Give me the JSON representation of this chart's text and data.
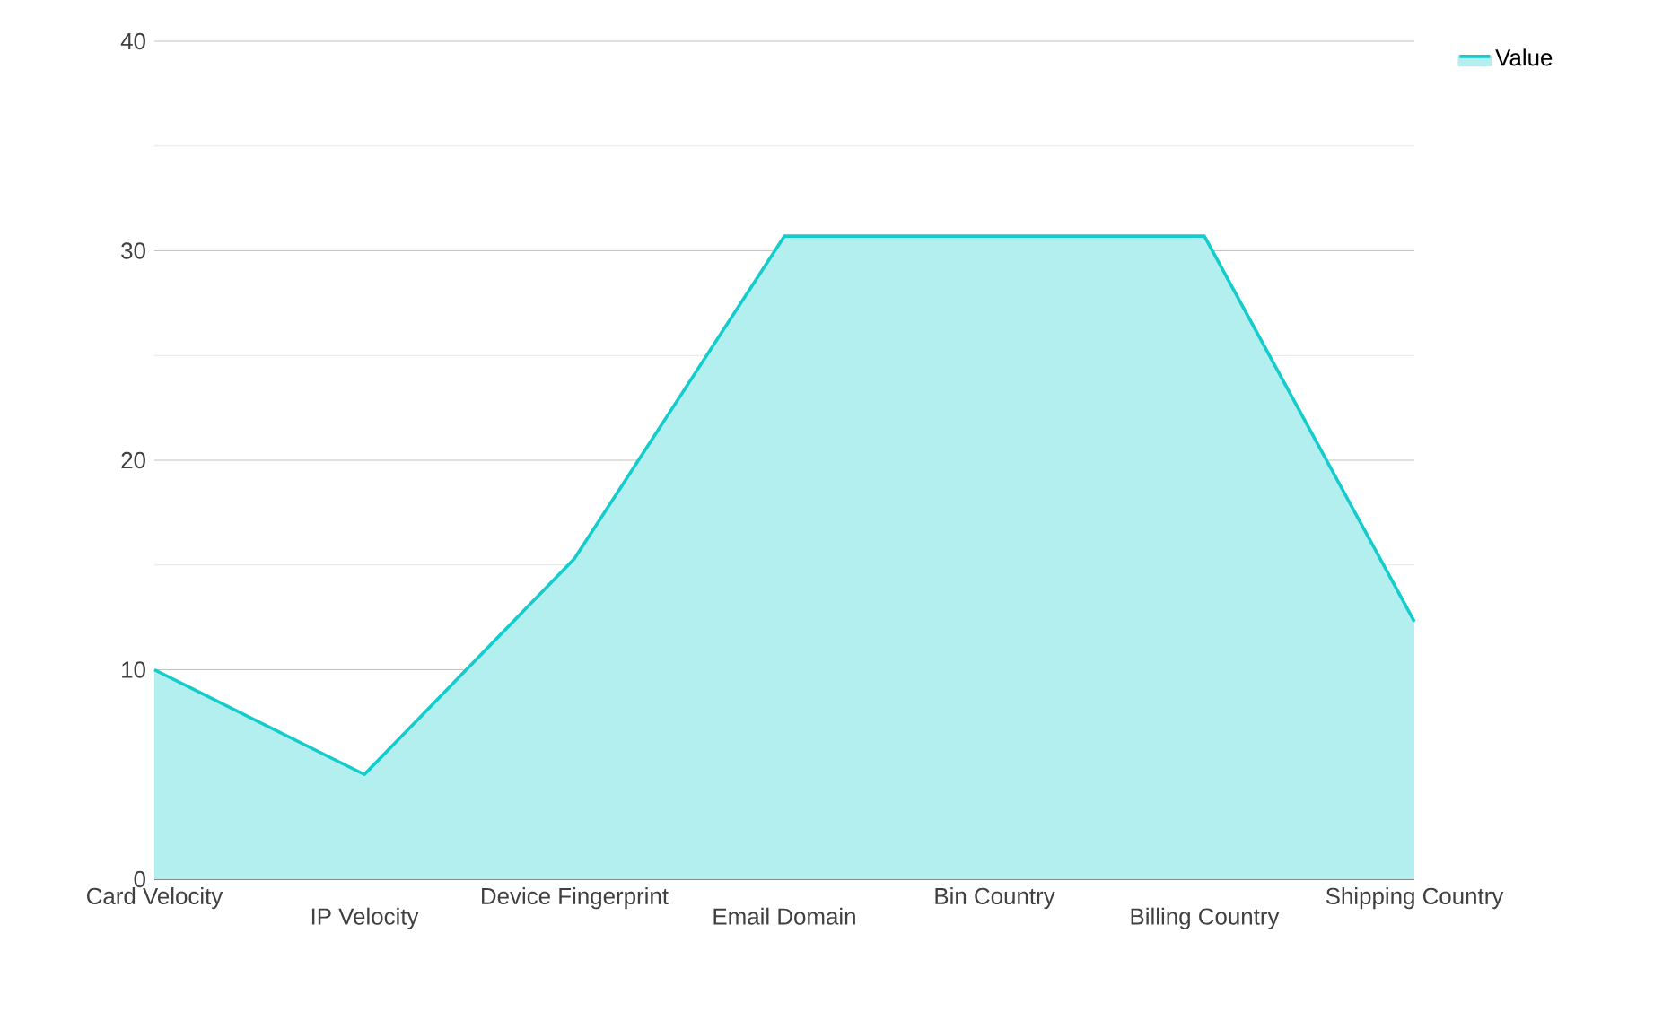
{
  "chart_data": {
    "type": "area",
    "categories": [
      "Card Velocity",
      "IP Velocity",
      "Device Fingerprint",
      "Email Domain",
      "Bin Country",
      "Billing Country",
      "Shipping Country"
    ],
    "series": [
      {
        "name": "Value",
        "color": "#14cccc",
        "values": [
          10,
          5,
          15.3,
          30.7,
          30.7,
          30.7,
          12.3
        ]
      }
    ],
    "ylim": [
      0,
      40
    ],
    "yticks": [
      0,
      {
        "value": 5,
        "label": null
      },
      10,
      {
        "value": 15,
        "label": null
      },
      20,
      {
        "value": 25,
        "label": null
      },
      30,
      {
        "value": 35,
        "label": null
      },
      40
    ],
    "grid": "y",
    "legend": "top right",
    "marker": "none",
    "line_style": "solid"
  }
}
